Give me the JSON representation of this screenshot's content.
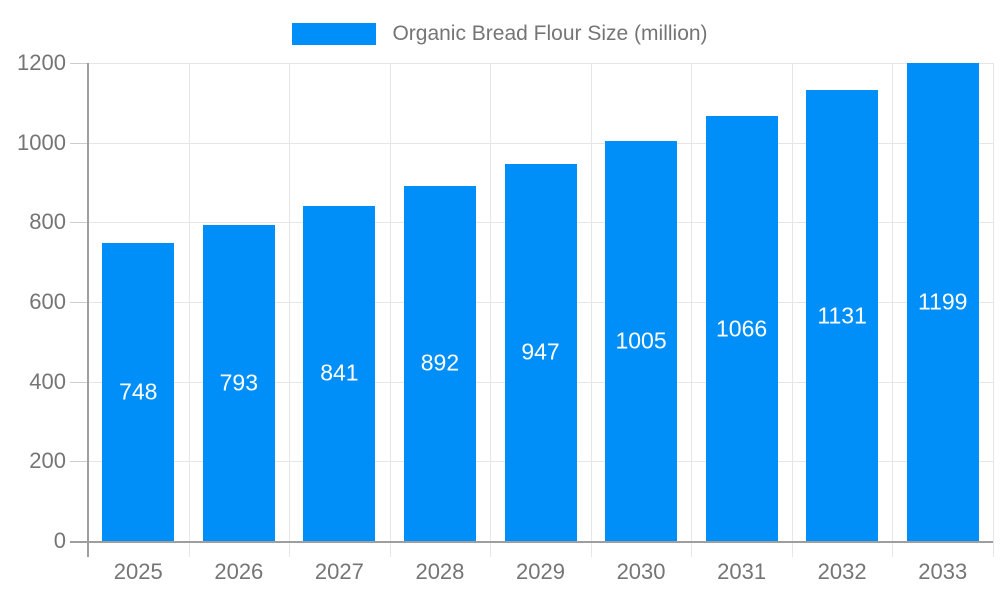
{
  "chart_data": {
    "type": "bar",
    "title": "Organic Bread Flour Size (million)",
    "legend": "Organic Bread Flour Size (million)",
    "legend_position": "top-center",
    "categories": [
      "2025",
      "2026",
      "2027",
      "2028",
      "2029",
      "2030",
      "2031",
      "2032",
      "2033"
    ],
    "values": [
      748,
      793,
      841,
      892,
      947,
      1005,
      1066,
      1131,
      1199
    ],
    "series": [
      {
        "name": "Organic Bread Flour Size (million)",
        "values": [
          748,
          793,
          841,
          892,
          947,
          1005,
          1066,
          1131,
          1199
        ]
      }
    ],
    "xlabel": "",
    "ylabel": "",
    "ylim": [
      0,
      1200
    ],
    "ytick_step": 200,
    "ytick_labels": [
      "0",
      "200",
      "400",
      "600",
      "800",
      "1000",
      "1200"
    ],
    "grid": true,
    "value_labels_shown": true,
    "colors": {
      "bar": "#008ff8",
      "grid": "#e6e6e6",
      "tick": "#cccccc",
      "axis": "#9e9e9e",
      "text": "#757575",
      "value_text": "#ffffff",
      "background": "#ffffff"
    }
  }
}
